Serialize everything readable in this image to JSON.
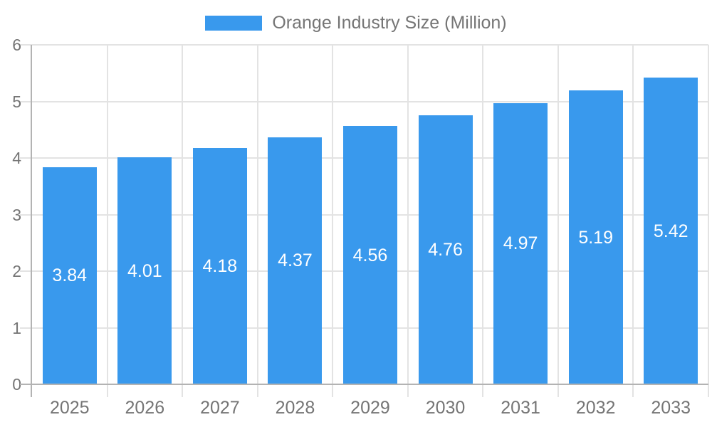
{
  "legend": {
    "label": "Orange Industry Size (Million)"
  },
  "colors": {
    "bar": "#3999ED",
    "axis": "#b3b3b3",
    "grid": "#e3e3e3",
    "tick_text": "#757575",
    "value_text": "#ffffff"
  },
  "chart_data": {
    "type": "bar",
    "title": "Orange Industry Size (Million)",
    "categories": [
      "2025",
      "2026",
      "2027",
      "2028",
      "2029",
      "2030",
      "2031",
      "2032",
      "2033"
    ],
    "series": [
      {
        "name": "Orange Industry Size (Million)",
        "values": [
          3.84,
          4.01,
          4.18,
          4.37,
          4.56,
          4.76,
          4.97,
          5.19,
          5.42
        ]
      }
    ],
    "value_labels": [
      "3.84",
      "4.01",
      "4.18",
      "4.37",
      "4.56",
      "4.76",
      "4.97",
      "5.19",
      "5.42"
    ],
    "xlabel": "",
    "ylabel": "",
    "ylim": [
      0,
      6
    ],
    "yticks": [
      0,
      1,
      2,
      3,
      4,
      5,
      6
    ],
    "grid": true,
    "legend_position": "top"
  }
}
